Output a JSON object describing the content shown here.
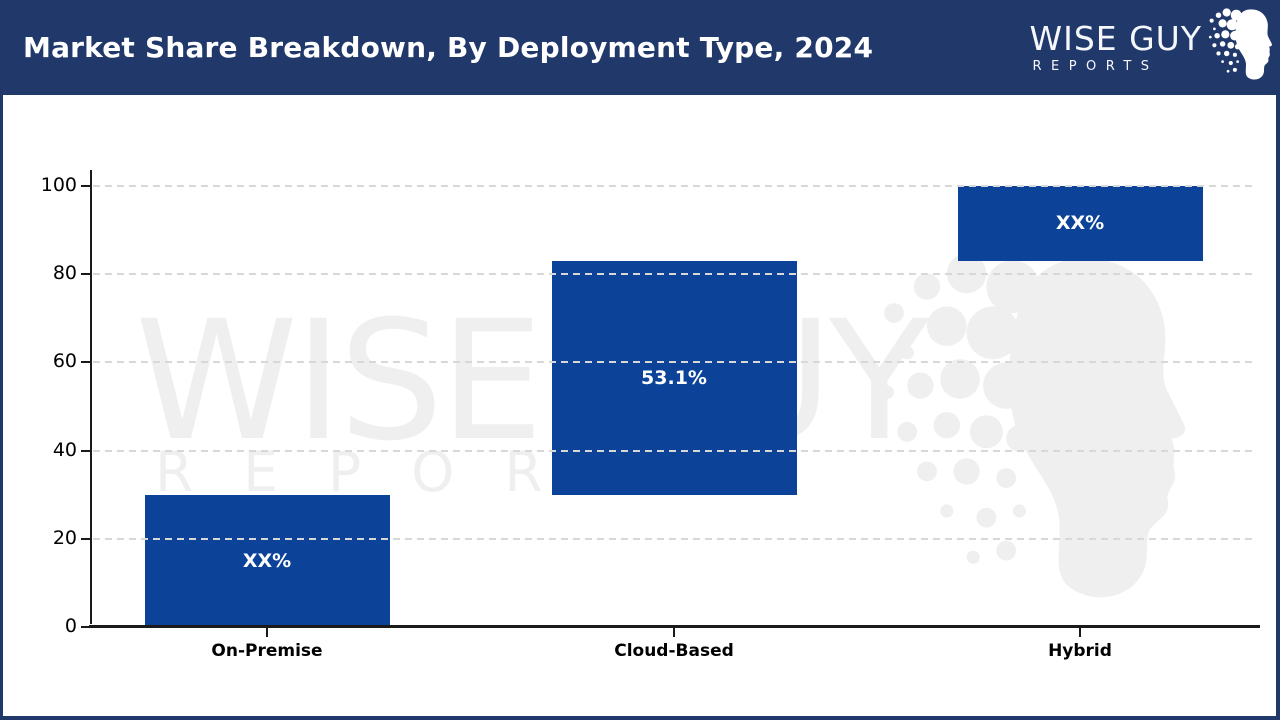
{
  "header": {
    "title": "Market Share Breakdown, By Deployment Type, 2024",
    "logo": {
      "wordmark": "WISE GUY",
      "sub": "REPORTS"
    }
  },
  "watermark": {
    "wordmark": "WISE GUY",
    "sub": "REPORTS"
  },
  "chart_data": {
    "type": "bar",
    "subtype": "waterfall",
    "title": "Market Share Breakdown, By Deployment Type, 2024",
    "categories": [
      "On-Premise",
      "Cloud-Based",
      "Hybrid"
    ],
    "series": [
      {
        "name": "Market Share",
        "segments": [
          {
            "category": "On-Premise",
            "start": 0,
            "end": 30,
            "label": "XX%"
          },
          {
            "category": "Cloud-Based",
            "start": 30,
            "end": 83.1,
            "label": "53.1%"
          },
          {
            "category": "Hybrid",
            "start": 83.1,
            "end": 100,
            "label": "XX%"
          }
        ]
      }
    ],
    "xlabel": "",
    "ylabel": "",
    "ylim": [
      0,
      100
    ],
    "yticks": [
      0,
      20,
      40,
      60,
      80,
      100
    ],
    "grid": "horizontal-dashed-over-bars",
    "legend": "none",
    "bar_color": "#0c4398",
    "bar_label_color": "#ffffff"
  },
  "colors": {
    "header_bg": "#21386b",
    "bar": "#0c4398",
    "grid": "#d8d8d8",
    "axis": "#1a1a1a",
    "watermark": "#efefef",
    "title_text": "#ffffff"
  }
}
